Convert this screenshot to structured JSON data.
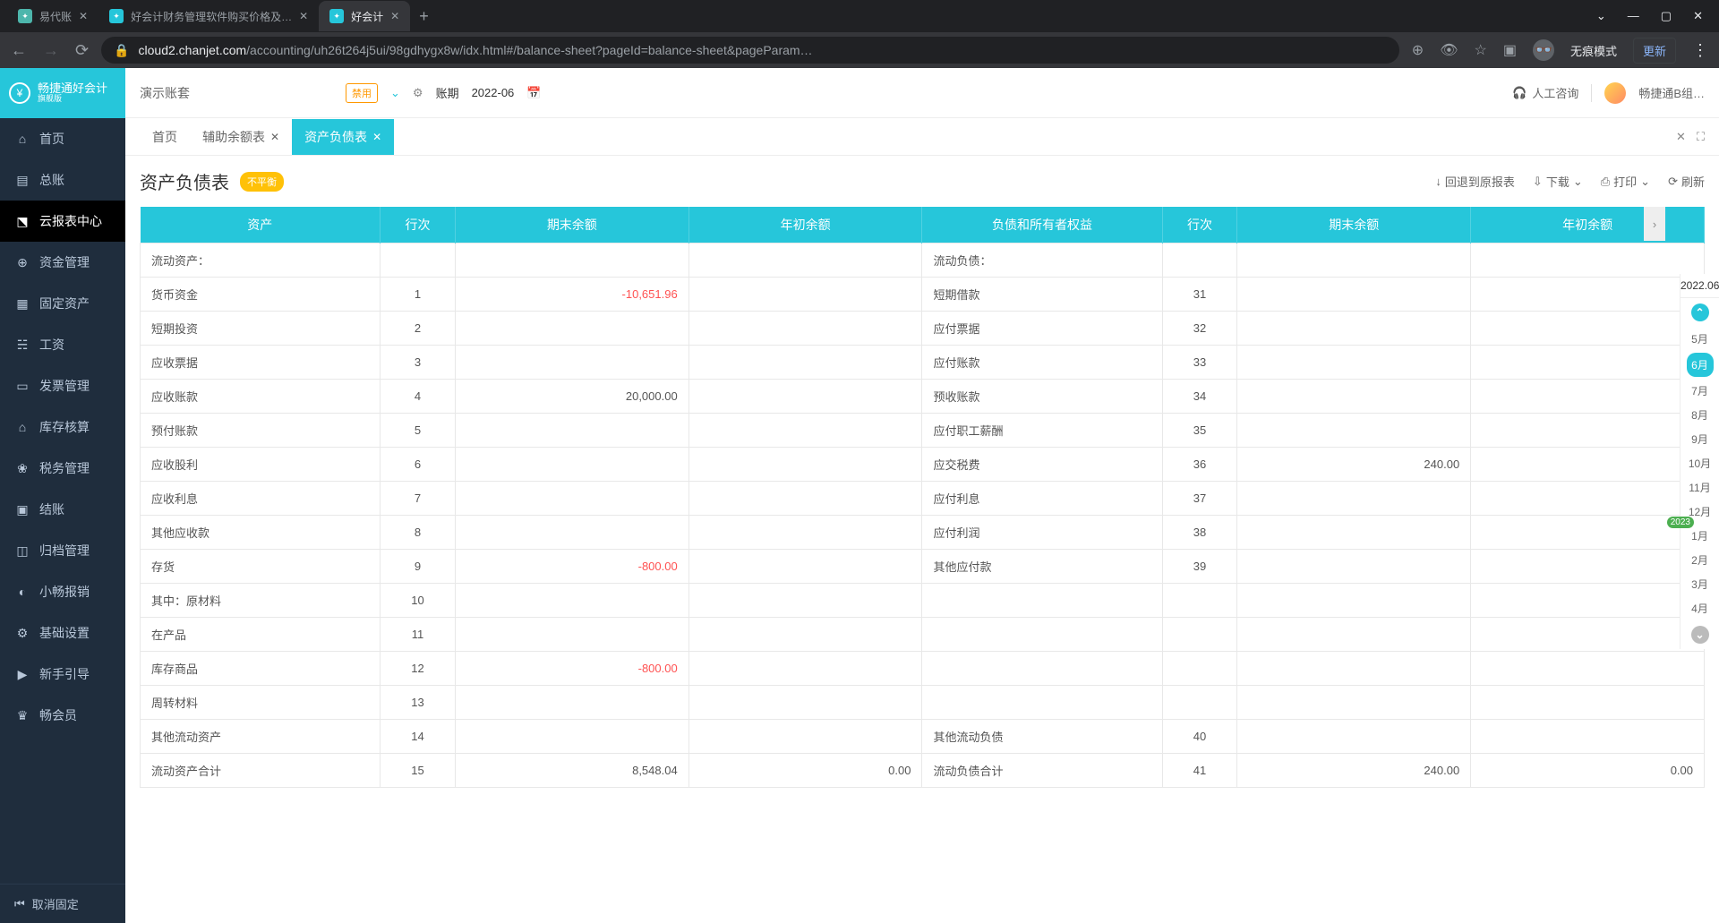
{
  "browser": {
    "tabs": [
      {
        "title": "易代账",
        "favicon_color": "#4db6ac"
      },
      {
        "title": "好会计财务管理软件购买价格及…",
        "favicon_color": "#26c6da"
      },
      {
        "title": "好会计",
        "favicon_color": "#26c6da",
        "active": true
      }
    ],
    "url_domain": "cloud2.chanjet.com",
    "url_path": "/accounting/uh26t264j5ui/98gdhygx8w/idx.html#/balance-sheet?pageId=balance-sheet&pageParam…",
    "incognito_label": "无痕模式",
    "update_label": "更新"
  },
  "sidebar": {
    "logo_main": "畅捷通好会计",
    "logo_sub": "旗舰版",
    "items": [
      {
        "icon": "⌂",
        "label": "首页"
      },
      {
        "icon": "▤",
        "label": "总账"
      },
      {
        "icon": "⬔",
        "label": "云报表中心",
        "active": true
      },
      {
        "icon": "⊕",
        "label": "资金管理"
      },
      {
        "icon": "▦",
        "label": "固定资产"
      },
      {
        "icon": "☵",
        "label": "工资"
      },
      {
        "icon": "▭",
        "label": "发票管理"
      },
      {
        "icon": "⌂",
        "label": "库存核算"
      },
      {
        "icon": "❀",
        "label": "税务管理"
      },
      {
        "icon": "▣",
        "label": "结账"
      },
      {
        "icon": "◫",
        "label": "归档管理"
      },
      {
        "icon": "◐",
        "label": "小畅报销"
      },
      {
        "icon": "⚙",
        "label": "基础设置"
      },
      {
        "icon": "▶",
        "label": "新手引导"
      },
      {
        "icon": "♛",
        "label": "畅会员"
      }
    ],
    "footer": {
      "icon": "⏮",
      "label": "取消固定"
    }
  },
  "header": {
    "account_set": "演示账套",
    "disable_label": "禁用",
    "period_label": "账期",
    "period_value": "2022-06",
    "support_label": "人工咨询",
    "user_name": "畅捷通B组…"
  },
  "page_tabs": [
    {
      "label": "首页",
      "closable": false
    },
    {
      "label": "辅助余额表",
      "closable": true
    },
    {
      "label": "资产负债表",
      "closable": true,
      "active": true
    }
  ],
  "toolbar": {
    "title": "资产负债表",
    "unbalanced_label": "不平衡",
    "back_label": "回退到原报表",
    "download_label": "下载",
    "print_label": "打印",
    "refresh_label": "刷新"
  },
  "table": {
    "headers": [
      "资产",
      "行次",
      "期末余额",
      "年初余额",
      "负债和所有者权益",
      "行次",
      "期末余额",
      "年初余额"
    ],
    "rows": [
      {
        "asset_label": "流动资产：",
        "asset_row": "",
        "asset_end": "",
        "asset_begin": "",
        "liab_label": "流动负债：",
        "liab_row": "",
        "liab_end": "",
        "liab_begin": ""
      },
      {
        "asset_label": "货币资金",
        "asset_row": "1",
        "asset_end": "-10,651.96",
        "asset_end_neg": true,
        "asset_begin": "",
        "liab_label": "短期借款",
        "liab_row": "31",
        "liab_end": "",
        "liab_begin": ""
      },
      {
        "asset_label": "短期投资",
        "asset_row": "2",
        "asset_end": "",
        "asset_begin": "",
        "liab_label": "应付票据",
        "liab_row": "32",
        "liab_end": "",
        "liab_begin": ""
      },
      {
        "asset_label": "应收票据",
        "asset_row": "3",
        "asset_end": "",
        "asset_begin": "",
        "liab_label": "应付账款",
        "liab_row": "33",
        "liab_end": "",
        "liab_begin": ""
      },
      {
        "asset_label": "应收账款",
        "asset_row": "4",
        "asset_end": "20,000.00",
        "asset_begin": "",
        "liab_label": "预收账款",
        "liab_row": "34",
        "liab_end": "",
        "liab_begin": ""
      },
      {
        "asset_label": "预付账款",
        "asset_row": "5",
        "asset_end": "",
        "asset_begin": "",
        "liab_label": "应付职工薪酬",
        "liab_row": "35",
        "liab_end": "",
        "liab_begin": ""
      },
      {
        "asset_label": "应收股利",
        "asset_row": "6",
        "asset_end": "",
        "asset_begin": "",
        "liab_label": "应交税费",
        "liab_row": "36",
        "liab_end": "240.00",
        "liab_begin": ""
      },
      {
        "asset_label": "应收利息",
        "asset_row": "7",
        "asset_end": "",
        "asset_begin": "",
        "liab_label": "应付利息",
        "liab_row": "37",
        "liab_end": "",
        "liab_begin": ""
      },
      {
        "asset_label": "其他应收款",
        "asset_row": "8",
        "asset_end": "",
        "asset_begin": "",
        "liab_label": "应付利润",
        "liab_row": "38",
        "liab_end": "",
        "liab_begin": ""
      },
      {
        "asset_label": "存货",
        "asset_row": "9",
        "asset_end": "-800.00",
        "asset_end_neg": true,
        "asset_begin": "",
        "liab_label": "其他应付款",
        "liab_row": "39",
        "liab_end": "",
        "liab_begin": ""
      },
      {
        "asset_label": "其中：原材料",
        "asset_row": "10",
        "asset_end": "",
        "asset_begin": "",
        "liab_label": "",
        "liab_row": "",
        "liab_end": "",
        "liab_begin": ""
      },
      {
        "asset_label": "在产品",
        "asset_row": "11",
        "asset_end": "",
        "asset_begin": "",
        "liab_label": "",
        "liab_row": "",
        "liab_end": "",
        "liab_begin": ""
      },
      {
        "asset_label": "库存商品",
        "asset_row": "12",
        "asset_end": "-800.00",
        "asset_end_neg": true,
        "asset_begin": "",
        "liab_label": "",
        "liab_row": "",
        "liab_end": "",
        "liab_begin": ""
      },
      {
        "asset_label": "周转材料",
        "asset_row": "13",
        "asset_end": "",
        "asset_begin": "",
        "liab_label": "",
        "liab_row": "",
        "liab_end": "",
        "liab_begin": ""
      },
      {
        "asset_label": "其他流动资产",
        "asset_row": "14",
        "asset_end": "",
        "asset_begin": "",
        "liab_label": "其他流动负债",
        "liab_row": "40",
        "liab_end": "",
        "liab_begin": ""
      },
      {
        "asset_label": "流动资产合计",
        "asset_row": "15",
        "asset_end": "8,548.04",
        "asset_begin": "0.00",
        "liab_label": "流动负债合计",
        "liab_row": "41",
        "liab_end": "240.00",
        "liab_begin": "0.00"
      }
    ]
  },
  "month_panel": {
    "year": "2022.06",
    "months": [
      "5月",
      "6月",
      "7月",
      "8月",
      "9月",
      "10月",
      "11月",
      "12月",
      "1月",
      "2月",
      "3月",
      "4月"
    ],
    "active_month": "6月",
    "year_badge": "2023",
    "badge_after_index": 7
  }
}
